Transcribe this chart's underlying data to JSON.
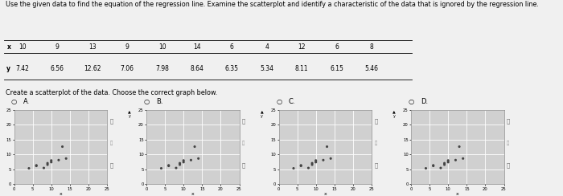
{
  "title_text": "Use the given data to find the equation of the regression line. Examine the scatterplot and identify a characteristic of the data that is ignored by the regression line.",
  "x_values": [
    10,
    9,
    13,
    9,
    10,
    14,
    6,
    4,
    12,
    6,
    8
  ],
  "y_values": [
    7.42,
    6.56,
    12.62,
    7.06,
    7.98,
    8.64,
    6.35,
    5.34,
    8.11,
    6.15,
    5.46
  ],
  "subtitle": "Create a scatterplot of the data. Choose the correct graph below.",
  "options": [
    "A.",
    "B.",
    "C.",
    "D."
  ],
  "background_color": "#f0f0f0",
  "plot_bg_color": "#d0d0d0",
  "grid_color": "#ffffff",
  "dot_color": "#444444",
  "title_fontsize": 5.8,
  "subtitle_fontsize": 5.8,
  "table_fontsize": 5.5,
  "tick_fontsize": 3.8,
  "label_fontsize": 4.5,
  "option_fontsize": 6.0
}
